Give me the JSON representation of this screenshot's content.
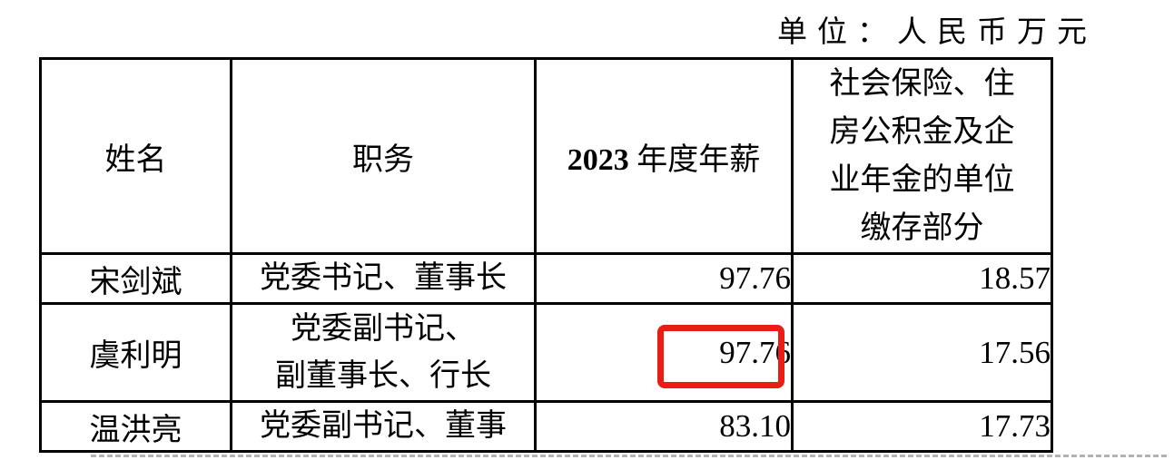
{
  "unit_note": "单位：人民币万元",
  "colors": {
    "highlight_box": "#e81e14",
    "table_border": "#000000",
    "text": "#000000"
  },
  "table": {
    "headers": {
      "name": "姓名",
      "position": "职务",
      "salary_year": "2023",
      "salary_suffix": " 年度年薪",
      "social_lines": [
        "社会保险、住",
        "房公积金及企",
        "业年金的单位",
        "缴存部分"
      ]
    },
    "rows": [
      {
        "name": "宋剑斌",
        "position": "党委书记、董事长",
        "salary": "97.76",
        "social": "18.57"
      },
      {
        "name": "虞利明",
        "position_line1": "党委副书记、",
        "position_line2": "副董事长、行长",
        "salary": "97.76",
        "social": "17.56",
        "salary_highlighted": true
      },
      {
        "name": "温洪亮",
        "position": "党委副书记、董事",
        "salary": "83.10",
        "social": "17.73"
      }
    ]
  }
}
